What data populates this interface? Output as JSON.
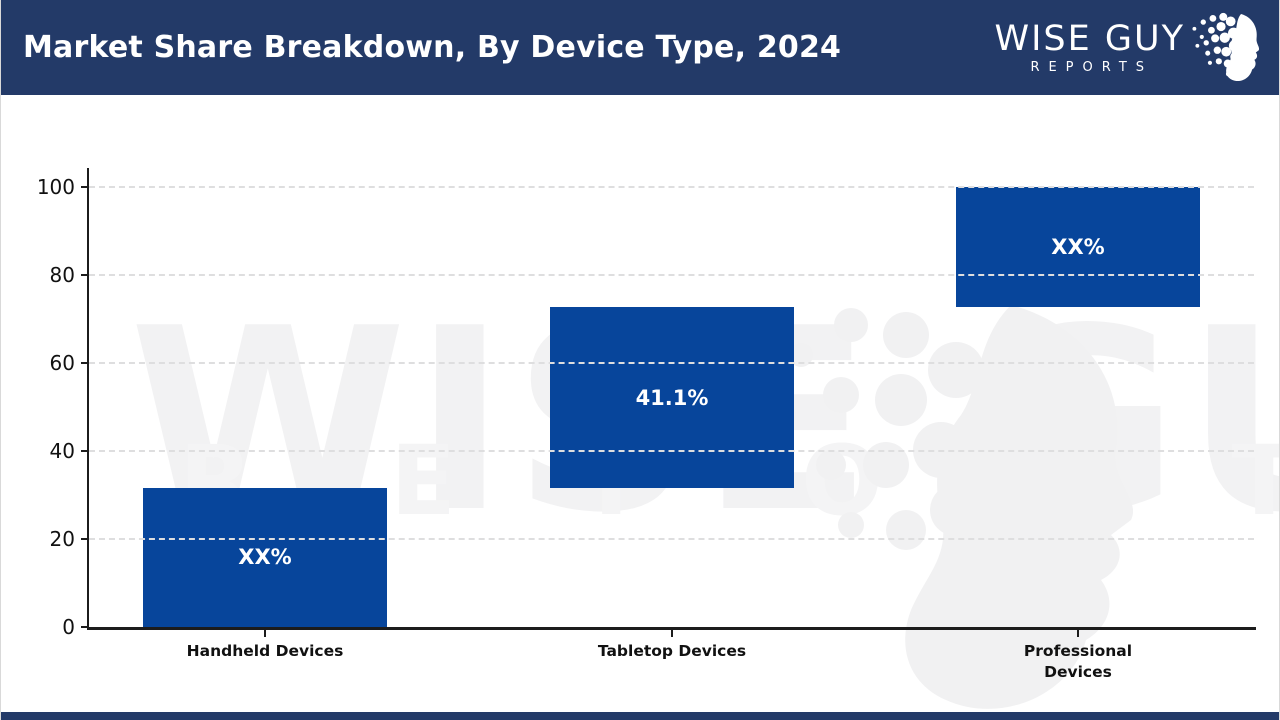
{
  "header": {
    "title": "Market Share Breakdown, By Device Type, 2024",
    "logo": {
      "line1": "WISE GUY",
      "line2": "REPORTS"
    }
  },
  "watermark": {
    "line1": "WISE GUY",
    "line2": "REPORTS"
  },
  "colors": {
    "header_bg": "#233a68",
    "footer_bg": "#233a68",
    "bar": "#07459b",
    "grid": "#dededf",
    "axis": "#1c1c1c",
    "bar_label": "#ffffff",
    "watermark": "#f2f2f3"
  },
  "chart_data": {
    "type": "bar",
    "subtype": "waterfall",
    "title": "Market Share Breakdown, By Device Type, 2024",
    "xlabel": "",
    "ylabel": "",
    "categories": [
      "Handheld Devices",
      "Tabletop Devices",
      "Professional Devices"
    ],
    "series": [
      {
        "name": "Market Share (%)",
        "segments": [
          {
            "category": "Handheld Devices",
            "start": 0,
            "end": 31.6,
            "label": "XX%"
          },
          {
            "category": "Tabletop Devices",
            "start": 31.6,
            "end": 72.7,
            "label": "41.1%"
          },
          {
            "category": "Professional Devices",
            "start": 72.7,
            "end": 100,
            "label": "XX%"
          }
        ]
      }
    ],
    "yticks": [
      0,
      20,
      40,
      60,
      80,
      100
    ],
    "ylim": [
      0,
      105
    ],
    "grid": "horizontal-dashed",
    "legend": "none"
  }
}
